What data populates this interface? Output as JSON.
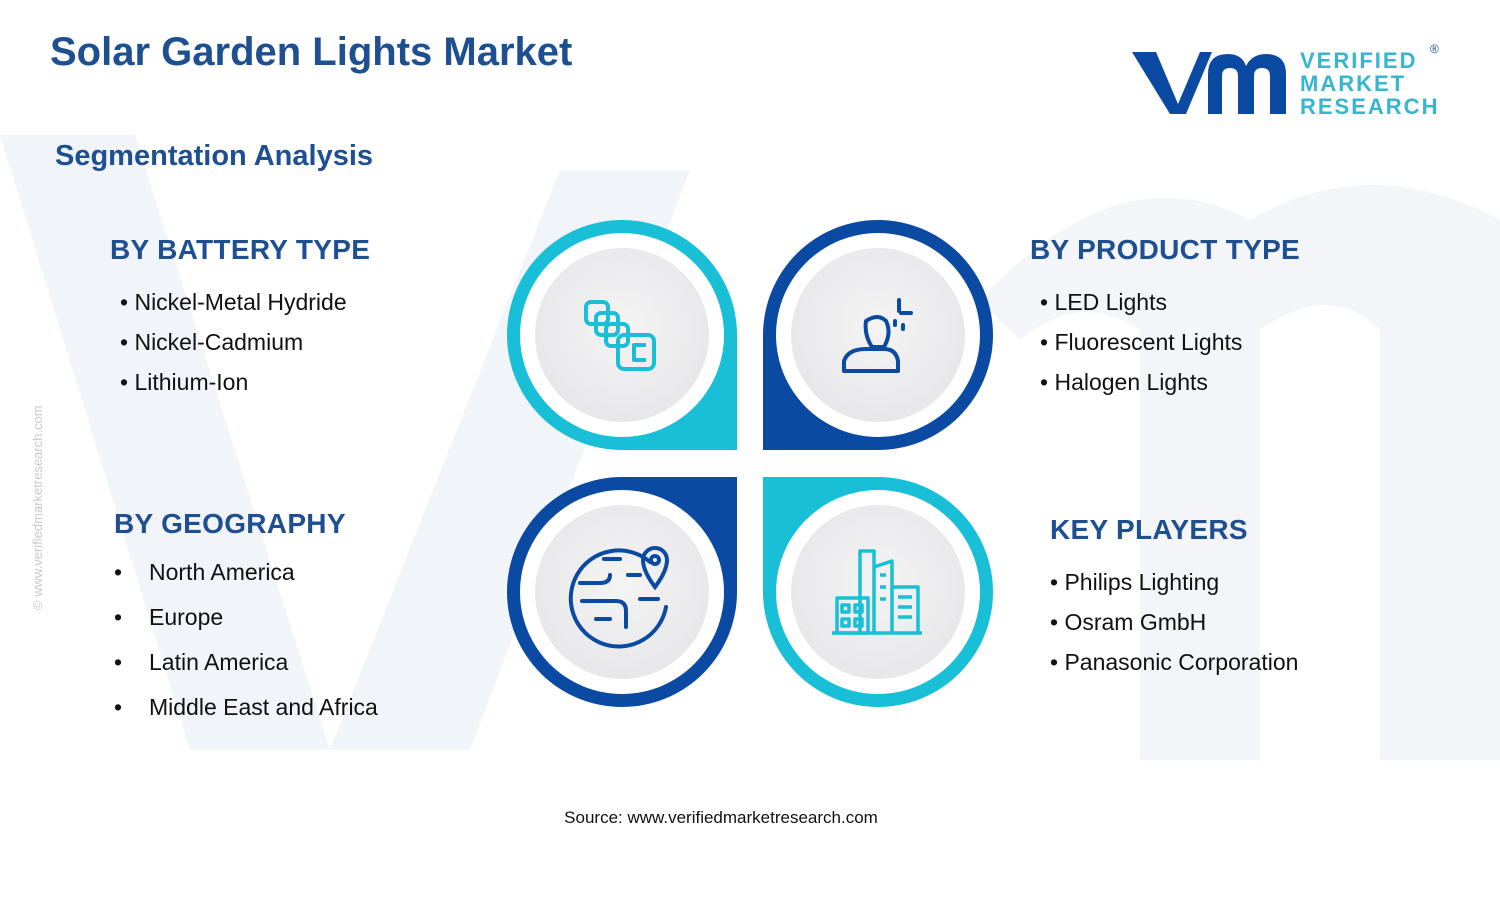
{
  "title": "Solar Garden Lights Market",
  "subtitle": "Segmentation Analysis",
  "logo": {
    "line1": "VERIFIED",
    "line2": "MARKET",
    "line3": "RESEARCH",
    "mark": "®"
  },
  "side_url": "© www.verifiedmarketresearch.com",
  "colors": {
    "navy": "#1d4f91",
    "dark_blue": "#0b4aa2",
    "cyan": "#19bfd6",
    "icon_bg": "#eeeeef"
  },
  "segments": {
    "battery": {
      "heading": "BY BATTERY TYPE",
      "items": [
        "Nickel-Metal Hydride",
        "Nickel-Cadmium",
        "Lithium-Ion"
      ],
      "icon": "battery-cells-icon"
    },
    "product": {
      "heading": "BY PRODUCT TYPE",
      "items": [
        "LED Lights",
        "Fluorescent Lights",
        "Halogen Lights"
      ],
      "icon": "person-sparkle-icon"
    },
    "geography": {
      "heading": "BY GEOGRAPHY",
      "items": [
        "North America",
        "Europe",
        "Latin America",
        "Middle East and Africa"
      ],
      "icon": "globe-pin-icon"
    },
    "players": {
      "heading": "KEY PLAYERS",
      "items": [
        "Philips Lighting",
        "Osram GmbH",
        "Panasonic Corporation"
      ],
      "icon": "buildings-icon"
    }
  },
  "source": "Source: www.verifiedmarketresearch.com"
}
